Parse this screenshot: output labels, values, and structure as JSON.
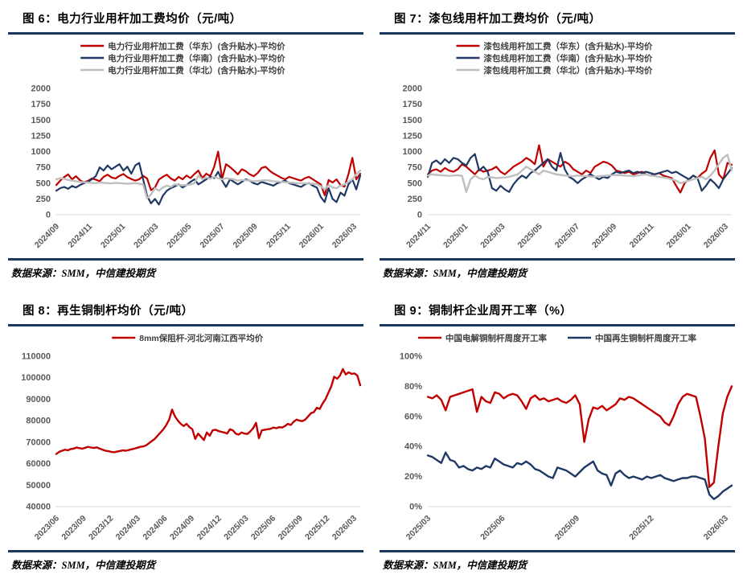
{
  "meta": {
    "background": "#ffffff",
    "rule_color": "#17375E",
    "axis_text_color": "#595959",
    "baseline_color": "#d9d9d9",
    "series_colors": {
      "red": "#C00000",
      "navy": "#1F3864",
      "gray": "#BFBFBF"
    }
  },
  "chart_data": [
    {
      "id": "fig6",
      "type": "line",
      "title": "图 6：电力行业用杆加工费均价（元/吨）",
      "source": "数据来源：SMM，中信建投期货",
      "legend_layout": "column",
      "y_axis": {
        "min": 0,
        "max": 2000,
        "ticks": [
          {
            "v": 0,
            "label": "0"
          },
          {
            "v": 250,
            "label": "250"
          },
          {
            "v": 500,
            "label": "500"
          },
          {
            "v": 750,
            "label": "750"
          },
          {
            "v": 1000,
            "label": "1000"
          },
          {
            "v": 1250,
            "label": "1250"
          },
          {
            "v": 1500,
            "label": "1500"
          },
          {
            "v": 1750,
            "label": "1750"
          },
          {
            "v": 2000,
            "label": "2000"
          }
        ]
      },
      "x_labels": [
        "2024/09",
        "2024/11",
        "2025/01",
        "2025/03",
        "2025/05",
        "2025/07",
        "2025/09",
        "2025/11",
        "2026/01",
        "2026/03"
      ],
      "series": [
        {
          "name": "power-rod-fee-east",
          "label": "电力行业用杆加工费（华东）(含升贴水)-平均价",
          "color": "#C00000",
          "width": 2.2,
          "values": [
            470,
            540,
            595,
            640,
            560,
            610,
            545,
            515,
            535,
            575,
            555,
            530,
            600,
            635,
            590,
            575,
            615,
            645,
            595,
            565,
            540,
            560,
            615,
            575,
            390,
            430,
            555,
            600,
            635,
            575,
            540,
            600,
            560,
            620,
            580,
            645,
            700,
            580,
            650,
            610,
            760,
            1000,
            570,
            800,
            755,
            700,
            640,
            720,
            690,
            640,
            610,
            660,
            740,
            760,
            700,
            655,
            620,
            585,
            560,
            600,
            580,
            558,
            540,
            580,
            600,
            560,
            520,
            480,
            310,
            550,
            510,
            560,
            470,
            445,
            640,
            900,
            560,
            650
          ]
        },
        {
          "name": "power-rod-fee-south",
          "label": "电力行业用杆加工费（华南）(含升贴水)-平均价",
          "color": "#1F3864",
          "width": 2.2,
          "values": [
            380,
            420,
            440,
            410,
            455,
            430,
            470,
            500,
            520,
            560,
            610,
            750,
            700,
            780,
            720,
            760,
            800,
            700,
            760,
            650,
            780,
            820,
            560,
            300,
            180,
            250,
            160,
            300,
            380,
            420,
            450,
            480,
            430,
            470,
            520,
            560,
            480,
            520,
            560,
            600,
            580,
            680,
            540,
            440,
            560,
            520,
            480,
            520,
            560,
            540,
            500,
            480,
            520,
            500,
            480,
            460,
            500,
            520,
            540,
            500,
            480,
            460,
            440,
            480,
            500,
            460,
            430,
            280,
            200,
            420,
            250,
            200,
            350,
            300,
            480,
            560,
            400,
            620
          ]
        },
        {
          "name": "power-rod-fee-north",
          "label": "电力行业用杆加工费（华北）(含升贴水)-平均价",
          "color": "#BFBFBF",
          "width": 2.4,
          "values": [
            560,
            580,
            570,
            550,
            540,
            530,
            520,
            515,
            510,
            505,
            500,
            510,
            505,
            500,
            495,
            505,
            500,
            495,
            490,
            495,
            500,
            490,
            480,
            260,
            320,
            420,
            380,
            430,
            460,
            440,
            480,
            470,
            465,
            470,
            480,
            500,
            620,
            560,
            590,
            570,
            600,
            580,
            560,
            580,
            570,
            560,
            540,
            550,
            545,
            540,
            530,
            535,
            540,
            545,
            540,
            530,
            525,
            520,
            515,
            510,
            505,
            500,
            498,
            495,
            492,
            490,
            485,
            450,
            400,
            470,
            430,
            420,
            460,
            480,
            520,
            560,
            640,
            700
          ]
        }
      ]
    },
    {
      "id": "fig7",
      "type": "line",
      "title": "图 7：漆包线用杆加工费均价（元/吨）",
      "source": "数据来源：SMM，中信建投期货",
      "legend_layout": "column",
      "y_axis": {
        "min": 0,
        "max": 2000,
        "ticks": [
          {
            "v": 0,
            "label": "0"
          },
          {
            "v": 250,
            "label": "250"
          },
          {
            "v": 500,
            "label": "500"
          },
          {
            "v": 750,
            "label": "750"
          },
          {
            "v": 1000,
            "label": "1000"
          },
          {
            "v": 1250,
            "label": "1250"
          },
          {
            "v": 1500,
            "label": "1500"
          },
          {
            "v": 1750,
            "label": "1750"
          },
          {
            "v": 2000,
            "label": "2000"
          }
        ]
      },
      "x_labels": [
        "2024/11",
        "2025/01",
        "2025/03",
        "2025/05",
        "2025/07",
        "2025/09",
        "2025/11",
        "2026/01",
        "2026/03"
      ],
      "series": [
        {
          "name": "enameled-rod-fee-east",
          "label": "漆包线用杆加工费（华东）(含升贴水)-平均价",
          "color": "#C00000",
          "width": 2.2,
          "values": [
            640,
            700,
            720,
            680,
            740,
            700,
            680,
            720,
            800,
            760,
            700,
            640,
            720,
            680,
            700,
            720,
            760,
            680,
            640,
            700,
            760,
            800,
            840,
            900,
            860,
            800,
            1100,
            760,
            880,
            840,
            800,
            760,
            840,
            800,
            720,
            680,
            640,
            700,
            660,
            760,
            800,
            840,
            820,
            780,
            700,
            680,
            660,
            680,
            640,
            660,
            680,
            640,
            620,
            640,
            660,
            620,
            600,
            580,
            460,
            350,
            500,
            560,
            620,
            580,
            650,
            700,
            900,
            1020,
            640,
            560,
            820,
            790
          ]
        },
        {
          "name": "enameled-rod-fee-south",
          "label": "漆包线用杆加工费（华南）(含升贴水)-平均价",
          "color": "#1F3864",
          "width": 2.2,
          "values": [
            600,
            820,
            860,
            800,
            880,
            820,
            900,
            880,
            820,
            780,
            900,
            960,
            700,
            760,
            680,
            420,
            380,
            460,
            400,
            360,
            480,
            560,
            620,
            580,
            660,
            700,
            760,
            820,
            880,
            760,
            700,
            980,
            720,
            600,
            560,
            500,
            560,
            600,
            640,
            600,
            560,
            600,
            580,
            640,
            680,
            660,
            680,
            700,
            660,
            680,
            660,
            680,
            660,
            640,
            660,
            680,
            700,
            660,
            680,
            640,
            600,
            560,
            620,
            580,
            380,
            460,
            560,
            500,
            420,
            560,
            650,
            740
          ]
        },
        {
          "name": "enameled-rod-fee-north",
          "label": "漆包线用杆加工费（华北）(含升贴水)-平均价",
          "color": "#BFBFBF",
          "width": 2.4,
          "values": [
            620,
            640,
            630,
            625,
            620,
            615,
            620,
            625,
            615,
            360,
            560,
            620,
            580,
            560,
            600,
            590,
            580,
            585,
            590,
            600,
            620,
            640,
            700,
            760,
            720,
            680,
            640,
            700,
            680,
            660,
            640,
            630,
            620,
            615,
            610,
            620,
            615,
            610,
            605,
            600,
            610,
            615,
            620,
            625,
            630,
            625,
            620,
            615,
            610,
            620,
            630,
            640,
            620,
            610,
            600,
            590,
            580,
            560,
            540,
            500,
            520,
            540,
            560,
            580,
            600,
            560,
            620,
            700,
            800,
            900,
            950,
            700
          ]
        }
      ]
    },
    {
      "id": "fig8",
      "type": "line",
      "title": "图 8：再生铜制杆均价（元/吨）",
      "source": "数据来源：SMM，中信建投期货",
      "legend_layout": "column",
      "y_axis": {
        "min": 40000,
        "max": 110000,
        "ticks": [
          {
            "v": 40000,
            "label": "40000"
          },
          {
            "v": 50000,
            "label": "50000"
          },
          {
            "v": 60000,
            "label": "60000"
          },
          {
            "v": 70000,
            "label": "70000"
          },
          {
            "v": 80000,
            "label": "80000"
          },
          {
            "v": 90000,
            "label": "90000"
          },
          {
            "v": 100000,
            "label": "100000"
          },
          {
            "v": 110000,
            "label": "110000"
          }
        ]
      },
      "x_labels": [
        "2023/06",
        "2023/09",
        "2023/12",
        "2024/03",
        "2024/06",
        "2024/09",
        "2024/12",
        "2025/03",
        "2025/06",
        "2025/09",
        "2025/12",
        "2026/03"
      ],
      "series": [
        {
          "name": "recycled-copper-rod-8mm-avg",
          "label": "8mm保阻杆-河北河南江西平均价",
          "color": "#C00000",
          "width": 2.4,
          "values": [
            64500,
            65500,
            66000,
            66500,
            66200,
            66800,
            67000,
            67500,
            67200,
            67000,
            67400,
            67800,
            67500,
            67300,
            67600,
            67000,
            66500,
            66000,
            65800,
            65500,
            65300,
            65600,
            65900,
            66200,
            66000,
            66300,
            66700,
            67000,
            67400,
            67800,
            68000,
            68500,
            69500,
            70500,
            71500,
            73000,
            74500,
            76000,
            78000,
            80500,
            85200,
            82000,
            80000,
            78500,
            77500,
            78500,
            77000,
            76000,
            71500,
            74000,
            72500,
            71000,
            74500,
            73000,
            75500,
            75800,
            75200,
            74800,
            74500,
            74000,
            76000,
            75500,
            74000,
            73500,
            74500,
            74000,
            73800,
            75000,
            76500,
            79000,
            71800,
            75500,
            75800,
            76000,
            76200,
            76800,
            76500,
            77000,
            76800,
            77500,
            78500,
            78000,
            79500,
            80500,
            80000,
            79800,
            80500,
            82000,
            83500,
            84000,
            86000,
            85500,
            88000,
            90000,
            93000,
            96000,
            100500,
            99500,
            101000,
            104000,
            101500,
            102500,
            101800,
            102000,
            101000,
            96500
          ]
        }
      ]
    },
    {
      "id": "fig9",
      "type": "line",
      "title": "图 9：铜制杆企业周开工率（%）",
      "source": "数据来源：SMM，中信建投期货",
      "legend_layout": "row",
      "y_axis": {
        "min": 0,
        "max": 100,
        "ticks": [
          {
            "v": 0,
            "label": "0%"
          },
          {
            "v": 20,
            "label": "20%"
          },
          {
            "v": 40,
            "label": "40%"
          },
          {
            "v": 60,
            "label": "60%"
          },
          {
            "v": 80,
            "label": "80%"
          },
          {
            "v": 100,
            "label": "100%"
          }
        ]
      },
      "x_labels": [
        "2025/03",
        "2025/06",
        "2025/09",
        "2025/12",
        "2026/03"
      ],
      "series": [
        {
          "name": "electrolytic-copper-rod-weekly-rate",
          "label": "中国电解铜制杆周度开工率",
          "color": "#C00000",
          "width": 2.4,
          "values": [
            73,
            72,
            74,
            71,
            64,
            73,
            74,
            75,
            76,
            77,
            78,
            63,
            73,
            70,
            69,
            76,
            75,
            72,
            74,
            75,
            74,
            70,
            65,
            72,
            74,
            71,
            72,
            70,
            71,
            72,
            70,
            69,
            71,
            74,
            68,
            43,
            58,
            66,
            65,
            67,
            64,
            66,
            68,
            72,
            71,
            73,
            72,
            70,
            68,
            66,
            64,
            62,
            60,
            56,
            54,
            60,
            68,
            73,
            75,
            74,
            73,
            60,
            45,
            13,
            16,
            40,
            62,
            73,
            80
          ]
        },
        {
          "name": "recycled-copper-rod-weekly-rate",
          "label": "中国再生铜制杆周度开工率",
          "color": "#1F3864",
          "width": 2.4,
          "values": [
            34,
            33,
            31,
            29,
            36,
            31,
            30,
            26,
            27,
            25,
            24,
            26,
            25,
            27,
            26,
            32,
            30,
            28,
            27,
            26,
            29,
            28,
            30,
            28,
            25,
            24,
            22,
            20,
            19,
            26,
            25,
            24,
            22,
            20,
            23,
            26,
            28,
            30,
            24,
            22,
            21,
            14,
            22,
            24,
            21,
            19,
            20,
            19,
            18,
            20,
            19,
            20,
            21,
            19,
            18,
            17,
            18,
            19,
            19,
            20,
            20,
            19,
            18,
            8,
            5,
            7,
            10,
            12,
            14
          ]
        }
      ]
    }
  ]
}
